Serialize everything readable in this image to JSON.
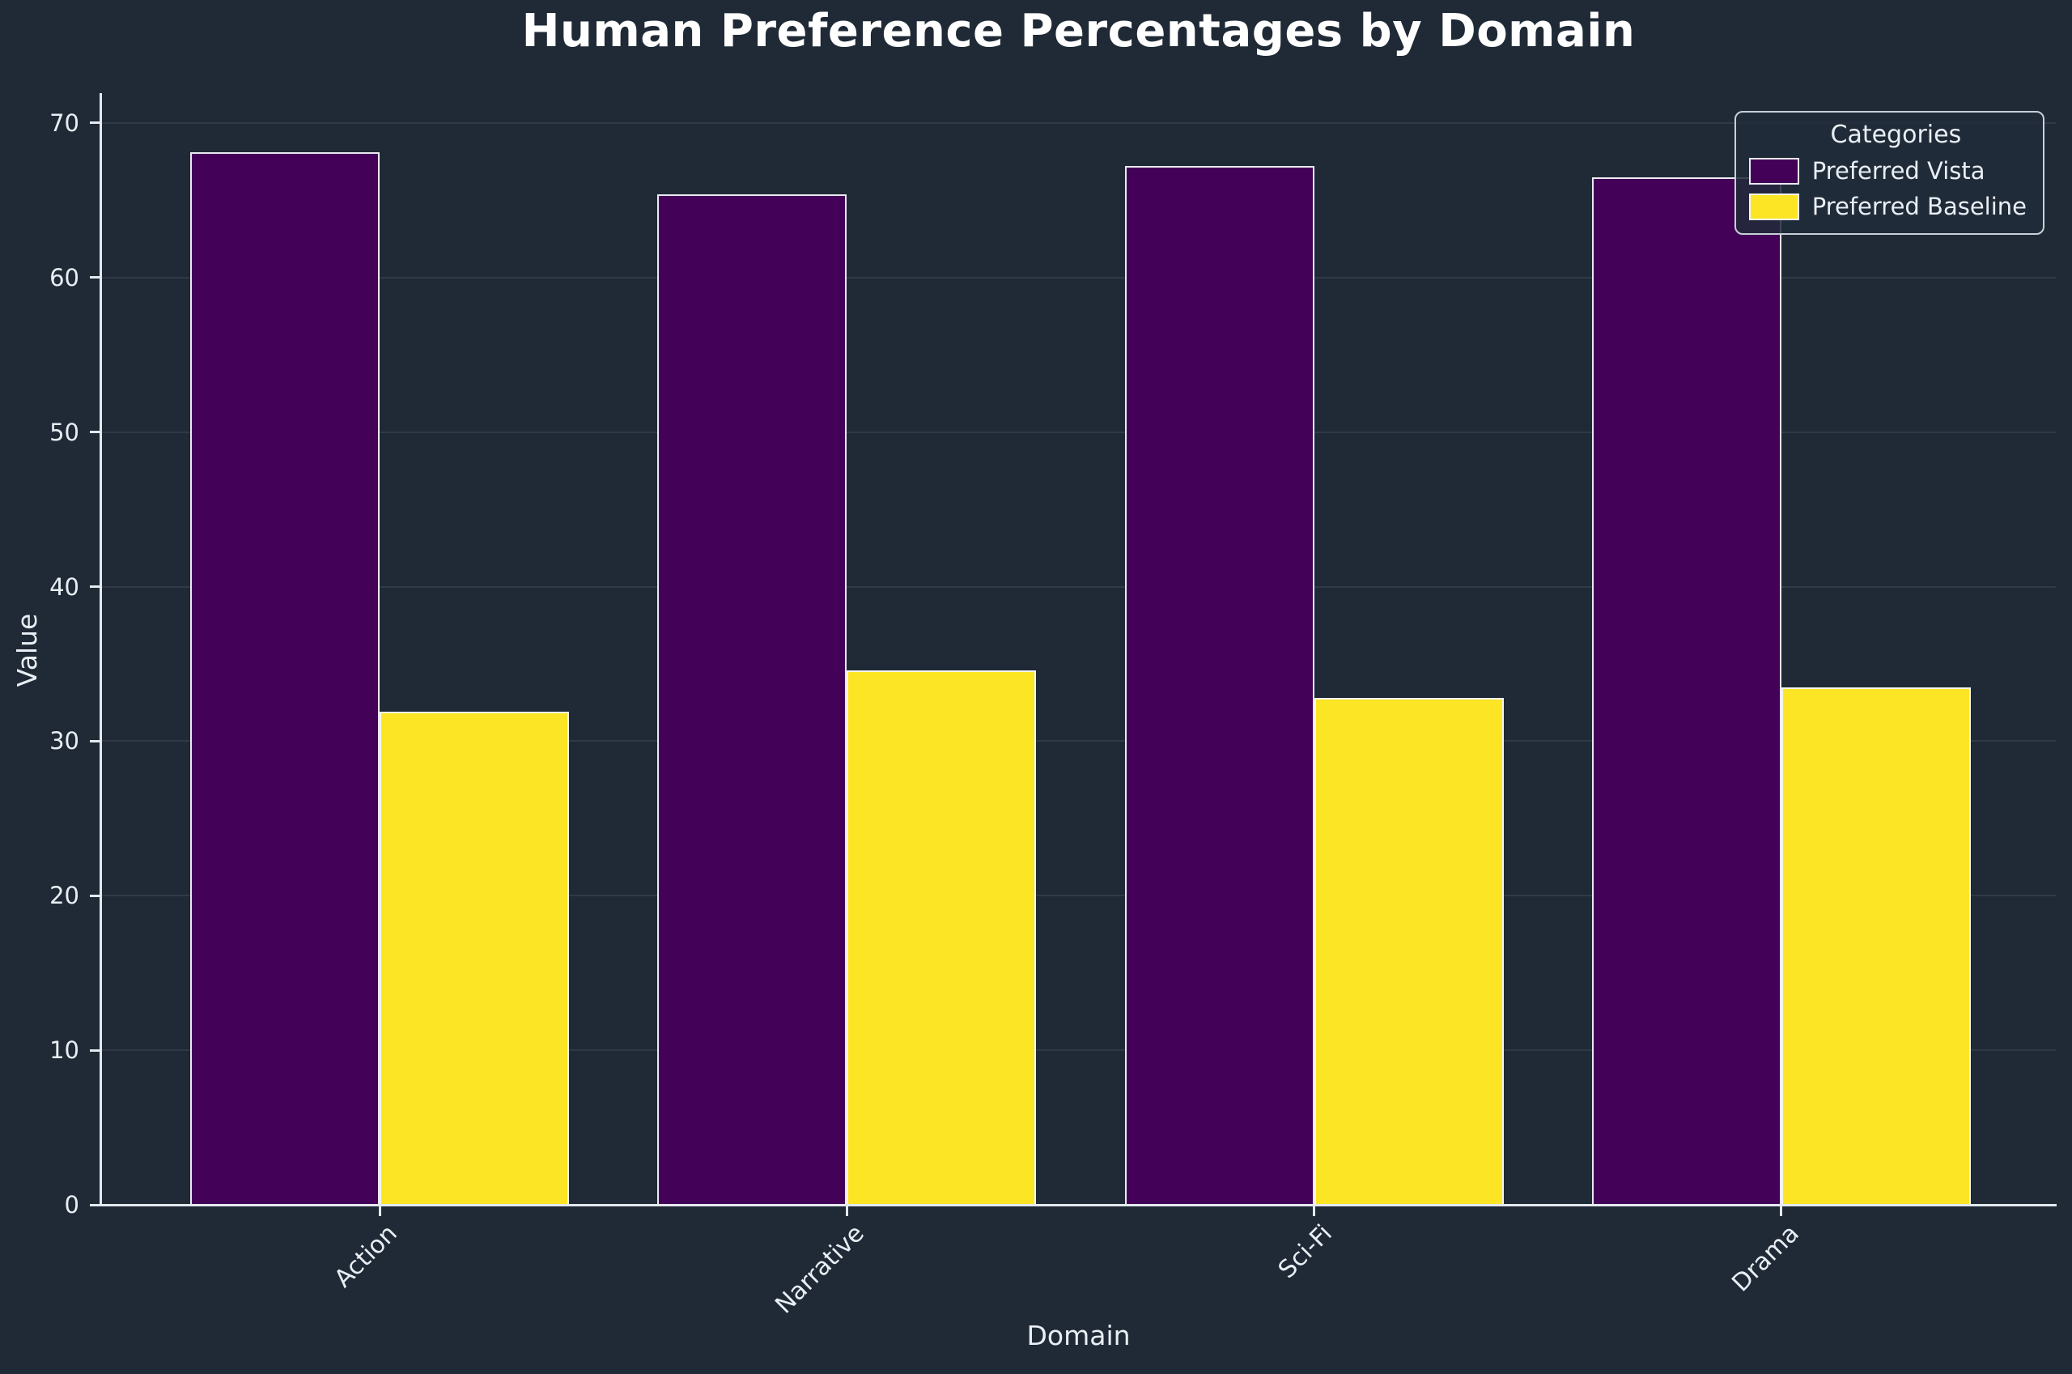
{
  "chart_data": {
    "type": "bar",
    "title": "Human Preference Percentages by Domain",
    "xlabel": "Domain",
    "ylabel": "Value",
    "categories": [
      "Action",
      "Narrative",
      "Sci-Fi",
      "Drama"
    ],
    "series": [
      {
        "name": "Preferred Vista",
        "color": "#430158",
        "values": [
          68.1,
          65.4,
          67.2,
          66.5
        ]
      },
      {
        "name": "Preferred Baseline",
        "color": "#fce524",
        "values": [
          31.9,
          34.6,
          32.8,
          33.5
        ]
      }
    ],
    "ylim": [
      0,
      71.8
    ],
    "yticks": [
      0,
      10,
      20,
      30,
      40,
      50,
      60,
      70
    ],
    "grid": true,
    "legend": {
      "title": "Categories",
      "position": "upper right"
    }
  },
  "colors": {
    "background": "#1f2a36",
    "axis": "#e4e9ef",
    "text": "#e9eef4",
    "title": "#ffffff",
    "bar_edge": "#f3f5fa",
    "vista": "#430158",
    "baseline": "#fce524"
  }
}
